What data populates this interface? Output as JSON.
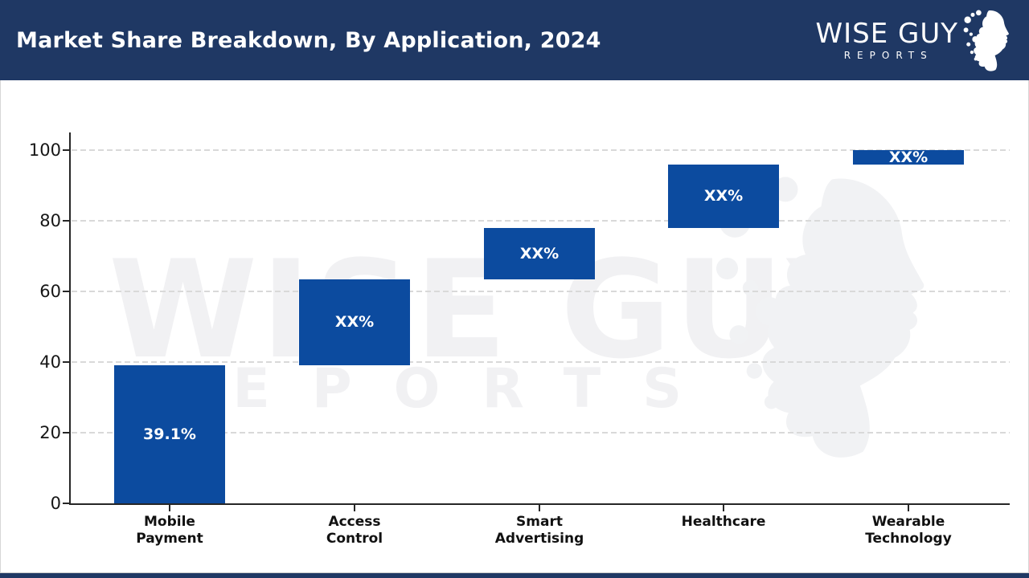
{
  "header": {
    "title": "Market Share Breakdown, By Application, 2024",
    "logo": {
      "line1": "WISE GUY",
      "line2": "REPORTS"
    }
  },
  "watermark": {
    "line1": "WISE GUY",
    "line2": "REPORTS"
  },
  "colors": {
    "header_bg": "#1F3864",
    "bar": "#0C4B9F",
    "gridline": "#d9d9d9",
    "axis": "#262626",
    "watermark": "#f1f1f3"
  },
  "chart_data": {
    "type": "bar",
    "subtype": "waterfall",
    "title": "Market Share Breakdown, By Application, 2024",
    "categories": [
      "Mobile Payment",
      "Access Control",
      "Smart Advertising",
      "Healthcare",
      "Wearable Technology"
    ],
    "segments": [
      {
        "category": "Mobile Payment",
        "start": 0,
        "end": 39.1,
        "value_label": "39.1%"
      },
      {
        "category": "Access Control",
        "start": 39.1,
        "end": 63.5,
        "value_label": "XX%"
      },
      {
        "category": "Smart Advertising",
        "start": 63.5,
        "end": 78,
        "value_label": "XX%"
      },
      {
        "category": "Healthcare",
        "start": 78,
        "end": 96,
        "value_label": "XX%"
      },
      {
        "category": "Wearable Technology",
        "start": 96,
        "end": 100,
        "value_label": "XX%"
      }
    ],
    "xlabel": "",
    "ylabel": "",
    "yticks": [
      0,
      20,
      40,
      60,
      80,
      100
    ],
    "ylim": [
      0,
      105
    ],
    "grid": "horizontal-dashed",
    "legend_position": "none",
    "bar_color": "#0C4B9F",
    "value_label_color": "#ffffff"
  }
}
